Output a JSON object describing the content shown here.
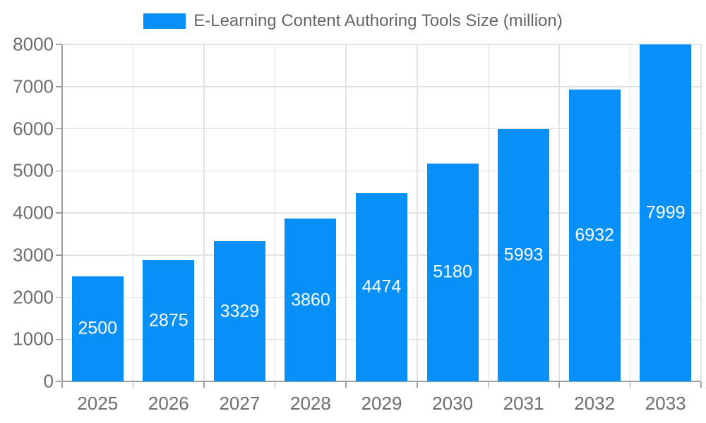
{
  "chart_data": {
    "type": "bar",
    "title": "",
    "legend_label": "E-Learning Content Authoring Tools Size (million)",
    "legend_position": "top",
    "categories": [
      "2025",
      "2026",
      "2027",
      "2028",
      "2029",
      "2030",
      "2031",
      "2032",
      "2033"
    ],
    "values": [
      2500,
      2875,
      3329,
      3860,
      4474,
      5180,
      5993,
      6932,
      7999
    ],
    "bar_labels": [
      "2500",
      "2875",
      "3329",
      "3860",
      "4474",
      "5180",
      "5993",
      "6932",
      "7999"
    ],
    "xlabel": "",
    "ylabel": "",
    "ylim": [
      0,
      8000
    ],
    "yticks": [
      "0",
      "1000",
      "2000",
      "3000",
      "4000",
      "5000",
      "6000",
      "7000",
      "8000"
    ],
    "grid": true,
    "colors": {
      "bar": "#0690f8",
      "bar_label": "#ffffff",
      "grid": "#e2e2e2",
      "axis": "#9e9e9e",
      "tick_label": "#6e6e6e",
      "legend_text": "#666666",
      "background": "#ffffff"
    }
  }
}
